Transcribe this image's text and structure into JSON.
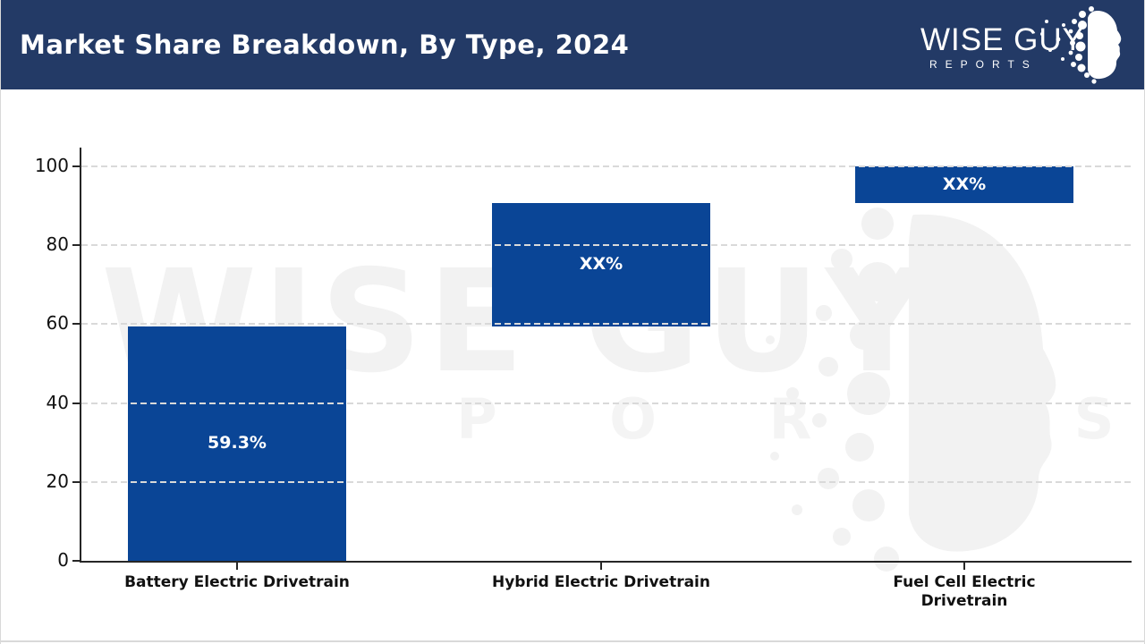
{
  "header": {
    "title": "Market Share Breakdown, By Type, 2024",
    "logo": {
      "line1": "WISE GUY",
      "line2": "R E P O R T S"
    }
  },
  "watermark": {
    "line1": "WISE GUY",
    "line2": "REPORTS"
  },
  "colors": {
    "header_bg": "#233a66",
    "bar": "#0a4596",
    "bar_label": "#ffffff",
    "axis": "#262626",
    "grid": "#d9d9d9",
    "watermark": "#f2f2f2"
  },
  "chart_data": {
    "type": "bar",
    "subtype": "floating-waterfall",
    "title": "Market Share Breakdown, By Type, 2024",
    "xlabel": "",
    "ylabel": "",
    "ylim": [
      0,
      100
    ],
    "yticks": [
      0,
      20,
      40,
      60,
      80,
      100
    ],
    "grid": "horizontal-dashed",
    "legend": "none",
    "categories": [
      "Battery Electric Drivetrain",
      "Hybrid Electric Drivetrain",
      "Fuel Cell Electric Drivetrain"
    ],
    "bars": [
      {
        "category": "Battery Electric Drivetrain",
        "start": 0,
        "end": 59.3,
        "label": "59.3%"
      },
      {
        "category": "Hybrid Electric Drivetrain",
        "start": 59.3,
        "end": 90.7,
        "label": "XX%"
      },
      {
        "category": "Fuel Cell Electric Drivetrain",
        "start": 90.7,
        "end": 100,
        "label": "XX%"
      }
    ]
  }
}
